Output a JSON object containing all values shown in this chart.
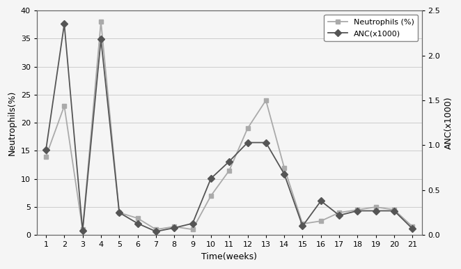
{
  "weeks": [
    1,
    2,
    3,
    4,
    5,
    6,
    7,
    8,
    9,
    10,
    11,
    12,
    13,
    14,
    15,
    16,
    17,
    18,
    19,
    20,
    21
  ],
  "neutrophils_pct": [
    14,
    23,
    1,
    38,
    4,
    3,
    1,
    1.5,
    1,
    7,
    11.5,
    19,
    24,
    12,
    2,
    2.5,
    4,
    4.5,
    5,
    4.5,
    1.5
  ],
  "anc_x1000": [
    0.95,
    2.35,
    0.05,
    2.18,
    0.25,
    0.13,
    0.04,
    0.08,
    0.13,
    0.63,
    0.82,
    1.03,
    1.03,
    0.68,
    0.1,
    0.38,
    0.22,
    0.27,
    0.27,
    0.27,
    0.07
  ],
  "neutrophils_color": "#aaaaaa",
  "anc_color": "#555555",
  "neutrophils_marker": "s",
  "anc_marker": "D",
  "ylabel_left": "Neutrophils(%)",
  "ylabel_right": "ANC(x1000)",
  "xlabel": "Time(weeks)",
  "ylim_left": [
    0,
    40
  ],
  "ylim_right": [
    0,
    2.5
  ],
  "yticks_left": [
    0,
    5,
    10,
    15,
    20,
    25,
    30,
    35,
    40
  ],
  "yticks_right": [
    0,
    0.5,
    1,
    1.5,
    2,
    2.5
  ],
  "xticks": [
    1,
    2,
    3,
    4,
    5,
    6,
    7,
    8,
    9,
    10,
    11,
    12,
    13,
    14,
    15,
    16,
    17,
    18,
    19,
    20,
    21
  ],
  "legend_neutrophils": "Neutrophils (%)",
  "legend_anc": "ANC(x1000)",
  "background_color": "#f5f5f5",
  "plot_bg_color": "#f5f5f5",
  "grid_color": "#cccccc",
  "linewidth": 1.3,
  "markersize": 5,
  "figsize": [
    6.62,
    3.86
  ],
  "dpi": 100
}
